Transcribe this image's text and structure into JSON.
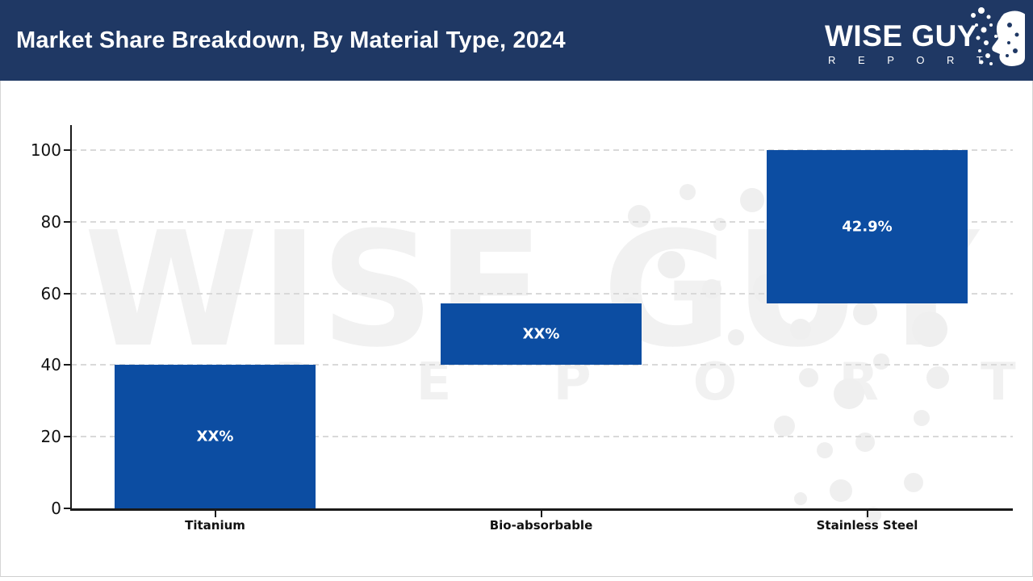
{
  "header": {
    "title": "Market Share Breakdown, By Material Type, 2024",
    "logo": {
      "line1": "WISE GUY",
      "line2": "R E P O R T S"
    }
  },
  "watermark": {
    "line1": "WISE GUY",
    "line2": "R E P O R T S"
  },
  "colors": {
    "header_bg": "#1f3864",
    "bar": "#0c4da2",
    "grid": "#d9d9d9",
    "axis": "#1a1a1a",
    "bar_label": "#ffffff",
    "watermark": "#f1f1f1"
  },
  "chart_data": {
    "type": "bar",
    "subtype": "stacked-waterfall",
    "title": "Market Share Breakdown, By Material Type, 2024",
    "categories": [
      "Titanium",
      "Bio-absorbable",
      "Stainless Steel"
    ],
    "bars": [
      {
        "category": "Titanium",
        "start": 0,
        "end": 40,
        "label": "XX%"
      },
      {
        "category": "Bio-absorbable",
        "start": 40,
        "end": 57.1,
        "label": "XX%"
      },
      {
        "category": "Stainless Steel",
        "start": 57.1,
        "end": 100,
        "label": "42.9%"
      }
    ],
    "yticks": [
      0,
      20,
      40,
      60,
      80,
      100
    ],
    "ylim": [
      0,
      107
    ],
    "xlabel": "",
    "ylabel": "",
    "grid": "horizontal-dashed",
    "legend": "none"
  }
}
